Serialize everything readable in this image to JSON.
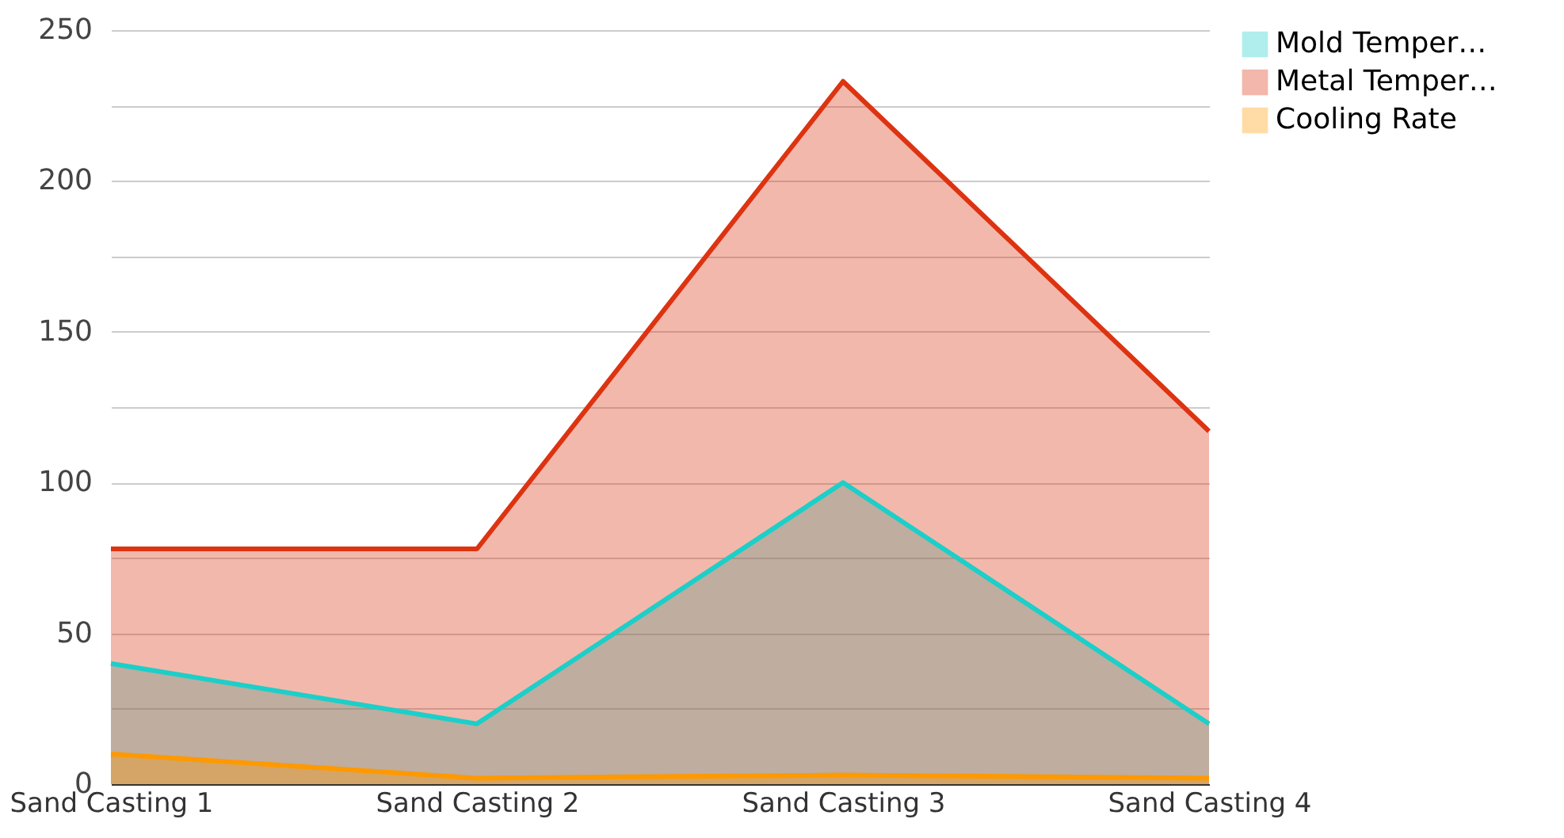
{
  "chart_data": {
    "type": "area",
    "categories": [
      "Sand Casting 1",
      "Sand Casting 2",
      "Sand Casting 3",
      "Sand Casting 4"
    ],
    "series": [
      {
        "name": "Mold Temper…",
        "color": "#1ccfc9",
        "values": [
          40,
          20,
          100,
          20
        ]
      },
      {
        "name": "Metal Temper…",
        "color": "#dd3311",
        "values": [
          78,
          78,
          233,
          117
        ]
      },
      {
        "name": "Cooling Rate",
        "color": "#ff9900",
        "values": [
          10,
          2,
          3,
          2
        ]
      }
    ],
    "ylim": [
      0,
      250
    ],
    "yticks": [
      0,
      {
        "value": 25,
        "label": null
      },
      50,
      {
        "value": 75,
        "label": null
      },
      100,
      {
        "value": 125,
        "label": null
      },
      150,
      {
        "value": 175,
        "label": null
      },
      200,
      {
        "value": 225,
        "label": null
      },
      250
    ],
    "grid": "y",
    "legend": "top right"
  }
}
